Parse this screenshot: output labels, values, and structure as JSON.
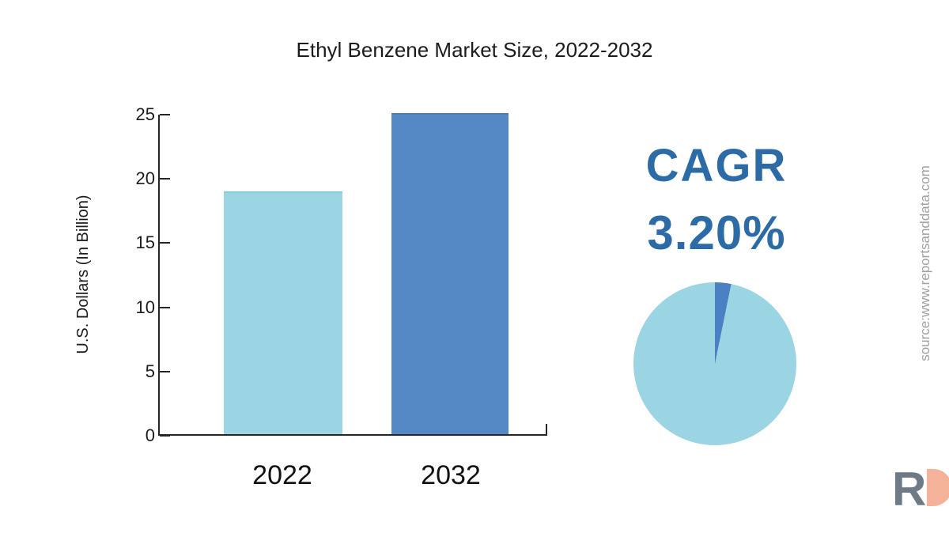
{
  "title": "Ethyl Benzene Market Size, 2022-2032",
  "source_note": "source:www.reportsanddata.com",
  "cagr": {
    "label": "CAGR",
    "value": "3.20%",
    "color": "#2d6ba6"
  },
  "logo": {
    "letter_r": "R",
    "r_color": "#6e7b86",
    "d_color": "#f4b299"
  },
  "colors": {
    "axis": "#262626",
    "title_text": "#1c1c1c",
    "source_text": "#a0a0a0"
  },
  "chart_data": [
    {
      "type": "bar",
      "title": "Ethyl Benzene Market Size, 2022-2032",
      "categories": [
        "2022",
        "2032"
      ],
      "values": [
        18.9,
        25
      ],
      "xlabel": "",
      "ylabel": "U.S. Dollars (In Billion)",
      "ylim": [
        0,
        25
      ],
      "yticks": [
        0,
        5,
        10,
        15,
        20,
        25
      ],
      "bar_colors": [
        "#9bd5e3",
        "#5589c5"
      ],
      "bar_edge_colors": [
        "#86cedd",
        "#4a7cb8"
      ],
      "grid": false,
      "legend": null
    },
    {
      "type": "pie",
      "description": "CAGR 3.20% share wedge starting at 12 o'clock, clockwise",
      "slices": [
        {
          "label": "CAGR 3.20%",
          "value": 3.2,
          "color": "#4b80c2"
        },
        {
          "label": "remainder",
          "value": 96.8,
          "color": "#9bd5e3"
        }
      ],
      "legend": null
    }
  ]
}
